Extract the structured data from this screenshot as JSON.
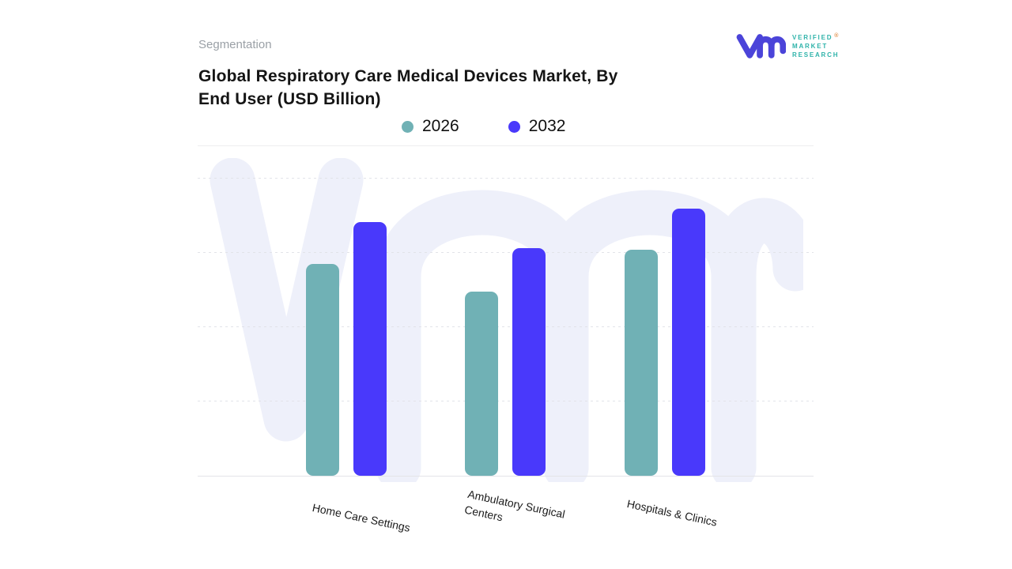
{
  "header": {
    "eyebrow": "Segmentation",
    "title_lines": [
      "Global Respiratory Care Medical Devices Market, By",
      "End User (USD Billion)"
    ]
  },
  "brand": {
    "monogram": "vmr",
    "wordmark_lines": [
      "VERIFIED",
      "MARKET",
      "RESEARCH"
    ],
    "registered_mark": "®",
    "logo_color": "#4b44d9",
    "wordmark_color": "#2fb3aa"
  },
  "legend": {
    "items": [
      {
        "label": "2026",
        "color": "#70b1b5"
      },
      {
        "label": "2032",
        "color": "#4939fb"
      }
    ]
  },
  "chart_data": {
    "type": "bar",
    "title": "Global Respiratory Care Medical Devices Market, By End User (USD Billion)",
    "ylabel": "USD Billion",
    "categories": [
      "Home Care Settings",
      "Ambulatory Surgical Centers",
      "Hospitals & Clinics"
    ],
    "series": [
      {
        "name": "2026",
        "color": "#70b1b5",
        "values": [
          2.87,
          2.49,
          3.06
        ]
      },
      {
        "name": "2032",
        "color": "#4939fb",
        "values": [
          3.43,
          3.08,
          3.62
        ]
      }
    ],
    "value_units": "relative gridline units (no numeric y-axis labels shown on chart)",
    "ylim": [
      0,
      4.4
    ],
    "gridline_values": [
      1,
      2,
      3,
      4
    ],
    "grid": "horizontal dashed lines, unlabeled",
    "legend_position": "top-center",
    "x_tick_rotation_deg": 12,
    "watermark": {
      "name": "vmr-monogram-watermark",
      "color": "#eef0fa"
    }
  }
}
